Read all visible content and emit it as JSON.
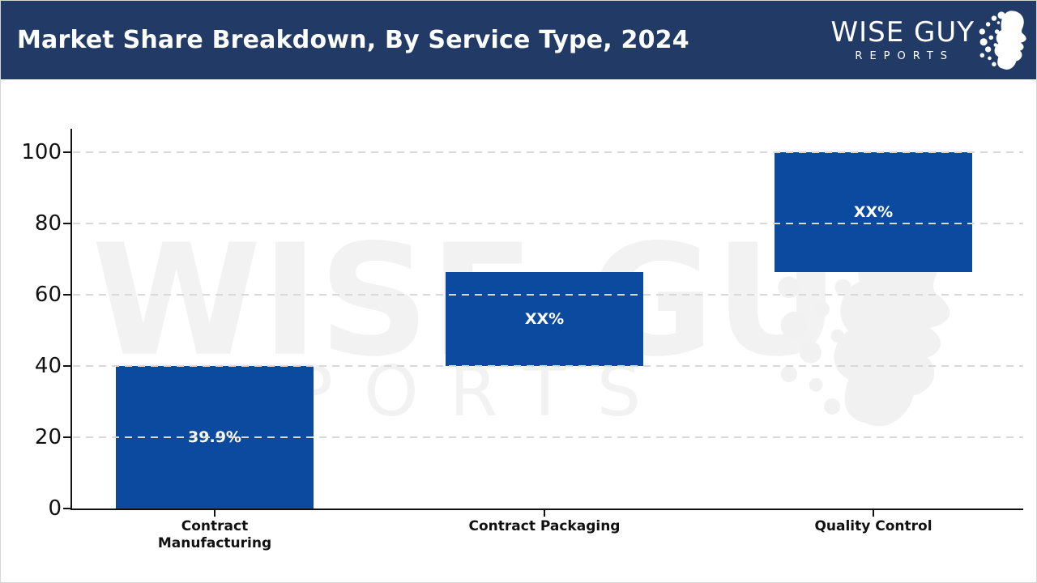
{
  "header": {
    "title": "Market Share Breakdown, By Service Type, 2024",
    "bg_color": "#213a66",
    "logo": {
      "wordmark": "WISE GUY",
      "subtext": "REPORTS",
      "face_icon": "dotted-face-profile-icon",
      "color": "#ffffff"
    }
  },
  "watermark": {
    "wordmark": "WISE GUY",
    "subtext": "REPORTS",
    "face_icon": "dotted-face-profile-icon",
    "color": "#f2f2f3"
  },
  "chart_data": {
    "type": "bar",
    "subtype": "floating-segment (waterfall-style market share)",
    "title": "Market Share Breakdown, By Service Type, 2024",
    "categories": [
      "Contract Manufacturing",
      "Contract Packaging",
      "Quality Control"
    ],
    "category_label_lines": [
      [
        "Contract",
        "Manufacturing"
      ],
      [
        "Contract Packaging"
      ],
      [
        "Quality Control"
      ]
    ],
    "segments": [
      {
        "category": "Contract Manufacturing",
        "from": 0,
        "to": 39.9,
        "value_label": "39.9%"
      },
      {
        "category": "Contract Packaging",
        "from": 40,
        "to": 66.4,
        "value_label": "XX%"
      },
      {
        "category": "Quality Control",
        "from": 66.4,
        "to": 100,
        "value_label": "XX%"
      }
    ],
    "xlabel": "",
    "ylabel": "",
    "ylim": [
      0,
      100
    ],
    "yticks": [
      0,
      20,
      40,
      60,
      80,
      100
    ],
    "grid": "horizontal dashed, drawn above bars",
    "gridline_color": "#d9d9d9",
    "bar_color": "#0b4a9e",
    "bar_label_color": "#ffffff",
    "axis_color": "#111111",
    "legend": "none"
  }
}
